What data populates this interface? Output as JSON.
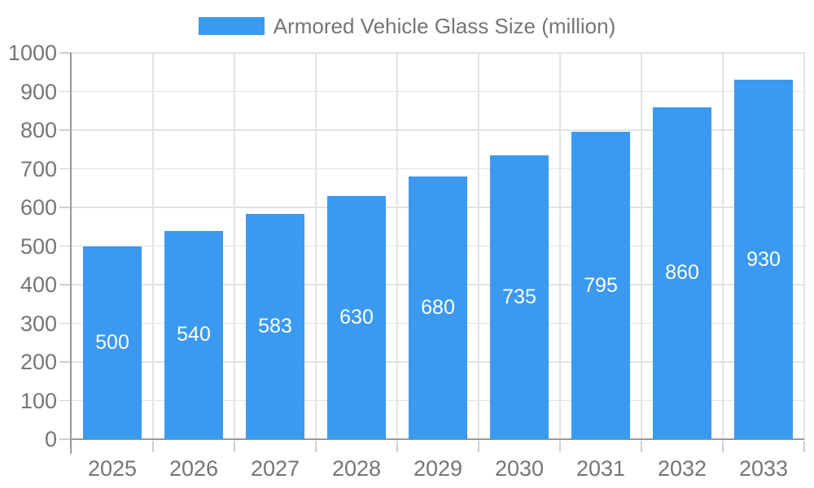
{
  "legend": {
    "label": "Armored Vehicle Glass Size (million)"
  },
  "chart_data": {
    "type": "bar",
    "title": "Armored Vehicle Glass Size (million)",
    "categories": [
      "2025",
      "2026",
      "2027",
      "2028",
      "2029",
      "2030",
      "2031",
      "2032",
      "2033"
    ],
    "values": [
      500,
      540,
      583,
      630,
      680,
      735,
      795,
      860,
      930
    ],
    "xlabel": "",
    "ylabel": "",
    "ylim": [
      0,
      1000
    ],
    "ytick_step": 100,
    "grid": true,
    "legend_position": "top",
    "value_labels": "inside-center",
    "colors": {
      "bar": "#3b99ef",
      "grid": "#e3e3e3",
      "tick": "#cfcfcf",
      "axis": "#999999",
      "text": "#757575",
      "value_label": "#ffffff"
    }
  }
}
